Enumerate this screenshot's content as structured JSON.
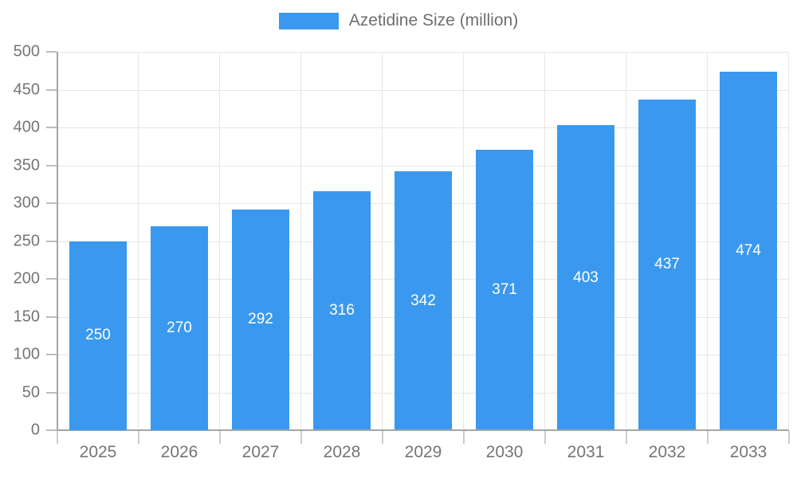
{
  "legend": {
    "label": "Azetidine Size (million)"
  },
  "chart_data": {
    "type": "bar",
    "title": "Azetidine Size (million)",
    "categories": [
      "2025",
      "2026",
      "2027",
      "2028",
      "2029",
      "2030",
      "2031",
      "2032",
      "2033"
    ],
    "values": [
      250,
      270,
      292,
      316,
      342,
      371,
      403,
      437,
      474
    ],
    "xlabel": "",
    "ylabel": "",
    "ylim": [
      0,
      500
    ],
    "ytick_step": 50,
    "grid": true,
    "legend_position": "top",
    "colors": {
      "bar": "#3a99ee",
      "value_label": "#ffffff",
      "grid_line": "#e6e6e6",
      "axis_line": "#a6a6a6",
      "tick_label": "#757575",
      "legend_text": "#6e6e6e"
    }
  }
}
